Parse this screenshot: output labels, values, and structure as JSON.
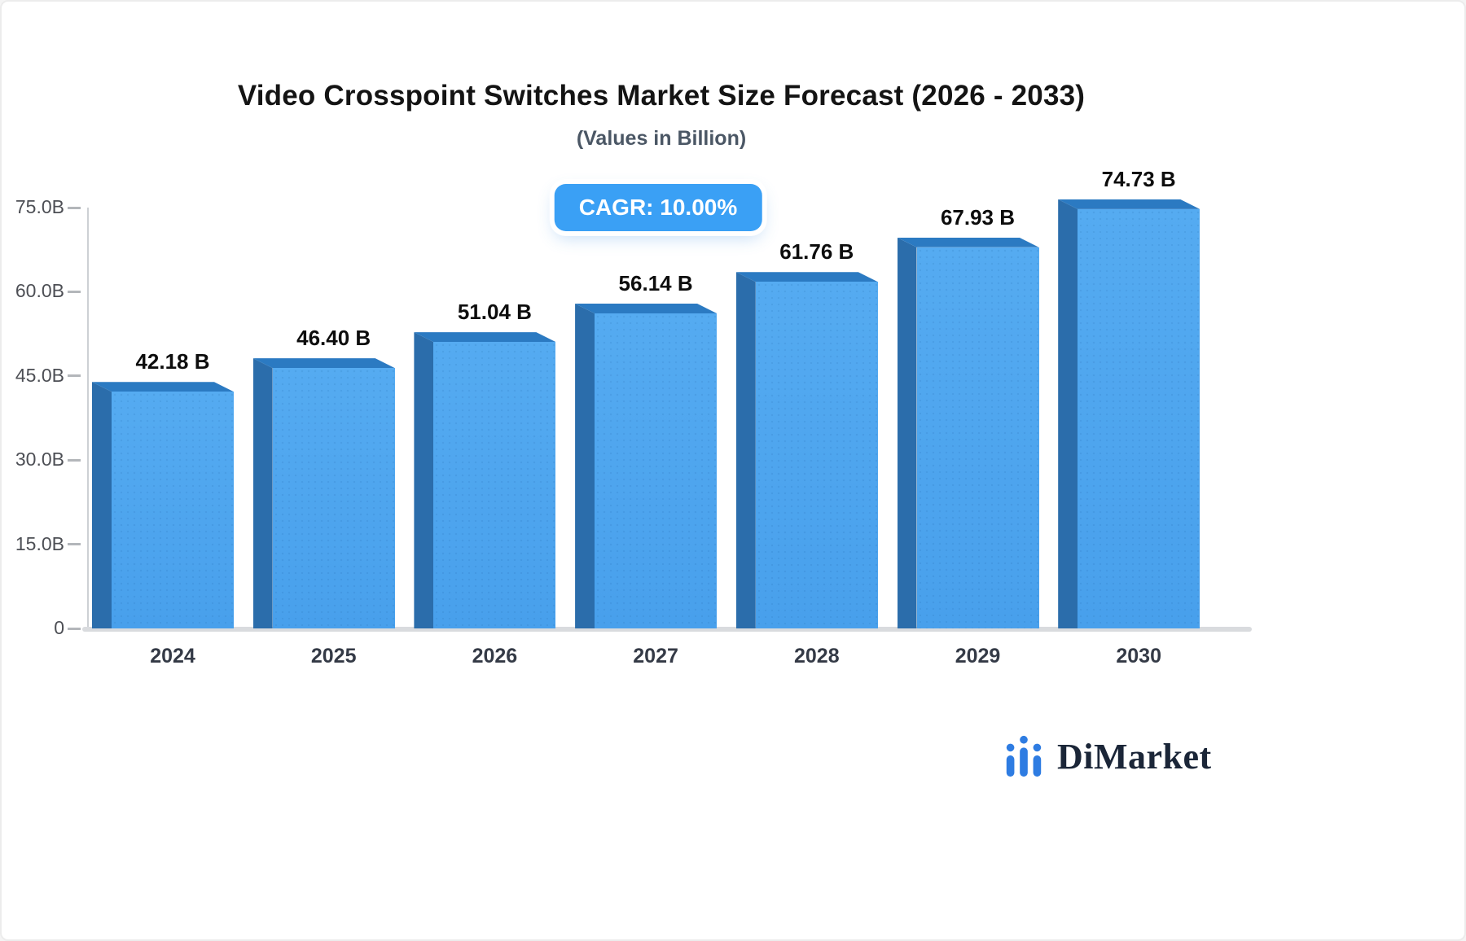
{
  "title": "Video Crosspoint Switches Market Size Forecast (2026 - 2033)",
  "subtitle": "(Values in Billion)",
  "badge": {
    "label": "CAGR: 10.00%"
  },
  "logo": {
    "text": "DiMarket",
    "icon": "bar-chart-icon"
  },
  "colors": {
    "badge_bg": "#3aa0f5",
    "bar_front": "#48a0ec",
    "bar_front_light": "#55abf1",
    "bar_side": "#2b6dab",
    "bar_top": "#2b7ac2",
    "axis_gray": "#cdd0d4",
    "logo_blue": "#2e7ce2",
    "logo_text": "#1b2638"
  },
  "chart_data": {
    "type": "bar",
    "title": "Video Crosspoint Switches Market Size Forecast (2026 - 2033)",
    "subtitle": "(Values in Billion)",
    "annotation": "CAGR: 10.00%",
    "categories": [
      "2024",
      "2025",
      "2026",
      "2027",
      "2028",
      "2029",
      "2030"
    ],
    "values": [
      42.18,
      46.4,
      51.04,
      56.14,
      61.76,
      67.93,
      74.73
    ],
    "value_labels": [
      "42.18 B",
      "46.40 B",
      "51.04 B",
      "56.14 B",
      "61.76 B",
      "67.93 B",
      "74.73 B"
    ],
    "xlabel": "",
    "ylabel": "",
    "ylim": [
      0,
      75
    ],
    "yticks": [
      0,
      15,
      30,
      45,
      60,
      75
    ],
    "ytick_labels": [
      "0",
      "15.0B",
      "30.0B",
      "45.0B",
      "60.0B",
      "75.0B"
    ],
    "grid": false,
    "legend": false
  }
}
